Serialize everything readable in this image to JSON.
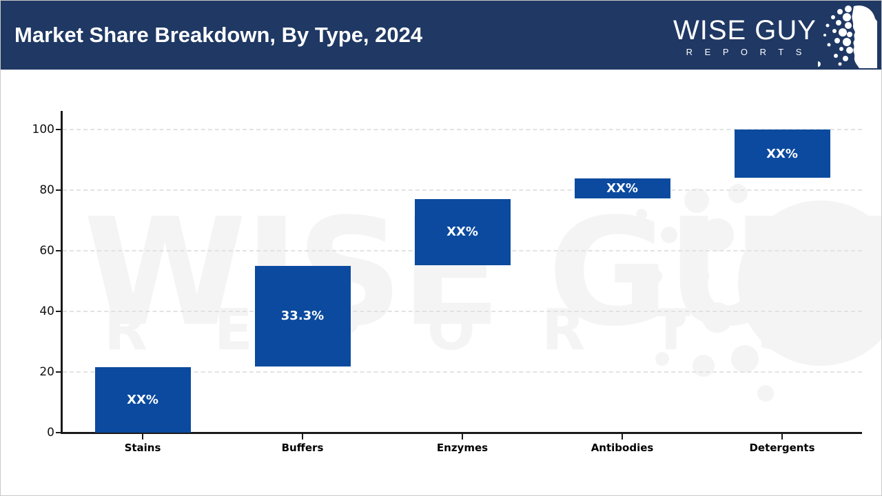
{
  "header": {
    "title": "Market Share Breakdown, By Type, 2024",
    "brand_name": "WISE GUY",
    "brand_sub": "R E P O R T S",
    "bg_color": "#1f3864"
  },
  "watermark": {
    "line1": "WISE GUY",
    "line2": "R E P O R T S"
  },
  "chart_data": {
    "type": "bar",
    "subtype": "waterfall",
    "title": "Market Share Breakdown, By Type, 2024",
    "categories": [
      "Stains",
      "Buffers",
      "Enzymes",
      "Antibodies",
      "Detergents"
    ],
    "segments": [
      {
        "category": "Stains",
        "start": 0,
        "end": 21.7,
        "label": "XX%"
      },
      {
        "category": "Buffers",
        "start": 21.8,
        "end": 55.1,
        "label": "33.3%"
      },
      {
        "category": "Enzymes",
        "start": 55.3,
        "end": 77.0,
        "label": "XX%"
      },
      {
        "category": "Antibodies",
        "start": 77.2,
        "end": 83.9,
        "label": "XX%"
      },
      {
        "category": "Detergents",
        "start": 84.0,
        "end": 100.0,
        "label": "XX%"
      }
    ],
    "ylim": [
      0,
      100
    ],
    "yticks": [
      0,
      20,
      40,
      60,
      80,
      100
    ],
    "xlabel": "",
    "ylabel": "",
    "legend": "none",
    "grid": "horizontal-dashed",
    "bar_color": "#0b4a9e",
    "bar_label_color": "#ffffff",
    "axis_color": "#1a1a1a"
  }
}
